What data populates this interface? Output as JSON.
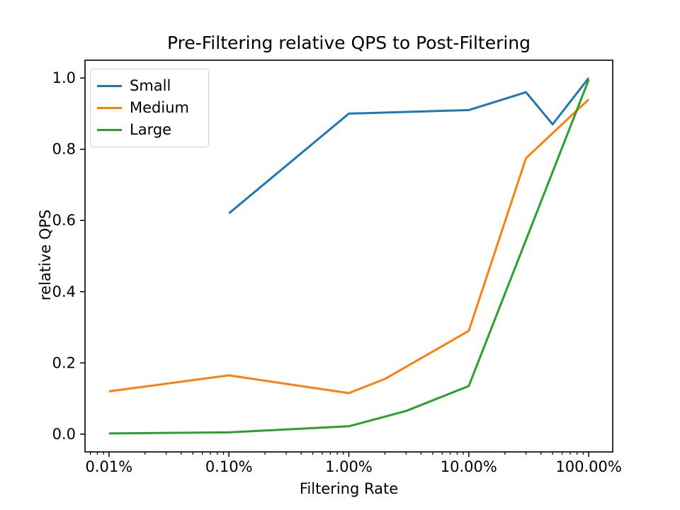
{
  "chart_data": {
    "type": "line",
    "title": "Pre-Filtering relative QPS to Post-Filtering",
    "xlabel": "Filtering Rate",
    "ylabel": "relative QPS",
    "x_scale": "log",
    "x_unit": "percent",
    "x_ticks": [
      {
        "value": 0.01,
        "label": "0.01%"
      },
      {
        "value": 0.1,
        "label": "0.10%"
      },
      {
        "value": 1,
        "label": "1.00%"
      },
      {
        "value": 10,
        "label": "10.00%"
      },
      {
        "value": 100,
        "label": "100.00%"
      }
    ],
    "y_ticks": [
      {
        "value": 0.0,
        "label": "0.0"
      },
      {
        "value": 0.2,
        "label": "0.2"
      },
      {
        "value": 0.4,
        "label": "0.4"
      },
      {
        "value": 0.6,
        "label": "0.6"
      },
      {
        "value": 0.8,
        "label": "0.8"
      },
      {
        "value": 1.0,
        "label": "1.0"
      }
    ],
    "xlim_log10": [
      -2.2,
      2.2
    ],
    "ylim": [
      -0.05,
      1.05
    ],
    "grid": false,
    "legend_position": "upper-left",
    "series": [
      {
        "name": "Small",
        "color": "#1f77b4",
        "points": [
          [
            0.1,
            0.62
          ],
          [
            1,
            0.9
          ],
          [
            10,
            0.91
          ],
          [
            30,
            0.96
          ],
          [
            50,
            0.87
          ],
          [
            100,
            1.0
          ]
        ]
      },
      {
        "name": "Medium",
        "color": "#ff7f0e",
        "points": [
          [
            0.01,
            0.12
          ],
          [
            0.1,
            0.165
          ],
          [
            1,
            0.115
          ],
          [
            2,
            0.155
          ],
          [
            10,
            0.29
          ],
          [
            30,
            0.775
          ],
          [
            100,
            0.94
          ]
        ]
      },
      {
        "name": "Large",
        "color": "#2ca02c",
        "points": [
          [
            0.01,
            0.002
          ],
          [
            0.1,
            0.005
          ],
          [
            1,
            0.022
          ],
          [
            3,
            0.065
          ],
          [
            10,
            0.135
          ],
          [
            100,
            0.995
          ]
        ]
      }
    ]
  }
}
